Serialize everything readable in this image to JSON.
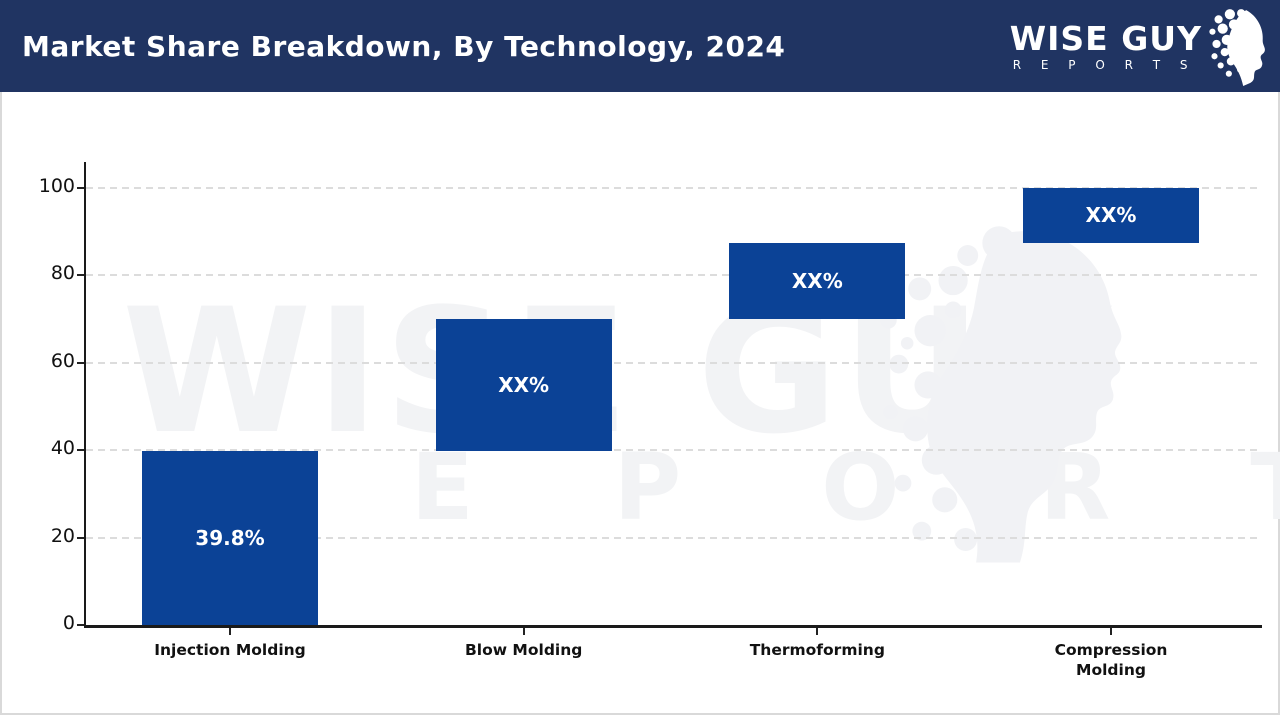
{
  "header": {
    "title": "Market Share Breakdown, By Technology, 2024",
    "logo": {
      "wordmark": "WISE GUY",
      "subtext": "R E P O R T S"
    }
  },
  "watermark": {
    "line1": "WISE GUY",
    "line2": "R E P O R T S"
  },
  "colors": {
    "header_bg": "#203462",
    "bar": "#0b4296",
    "grid": "#dcdcdc",
    "axis": "#1a1a1a",
    "watermark": "#f2f3f5",
    "bar_label": "#ffffff",
    "frame_border": "#d9d9d9"
  },
  "chart_data": {
    "type": "bar",
    "subtype": "waterfall-floating-bars",
    "title": "Market Share Breakdown, By Technology, 2024",
    "categories": [
      "Injection Molding",
      "Blow Molding",
      "Thermoforming",
      "Compression\nMolding"
    ],
    "segments": [
      {
        "category": "Injection Molding",
        "start": 0,
        "end": 39.8,
        "label": "39.8%"
      },
      {
        "category": "Blow Molding",
        "start": 39.8,
        "end": 70.0,
        "label": "XX%"
      },
      {
        "category": "Thermoforming",
        "start": 70.0,
        "end": 87.3,
        "label": "XX%"
      },
      {
        "category": "Compression Molding",
        "start": 87.3,
        "end": 100,
        "label": "XX%"
      }
    ],
    "yticks": [
      0,
      20,
      40,
      60,
      80,
      100
    ],
    "ylim": [
      0,
      106
    ],
    "xlabel": "",
    "ylabel": "",
    "grid": "dashed horizontal gridlines",
    "legend": "none",
    "bar_color": "#0b4296",
    "value_label_position": "center of bar"
  }
}
